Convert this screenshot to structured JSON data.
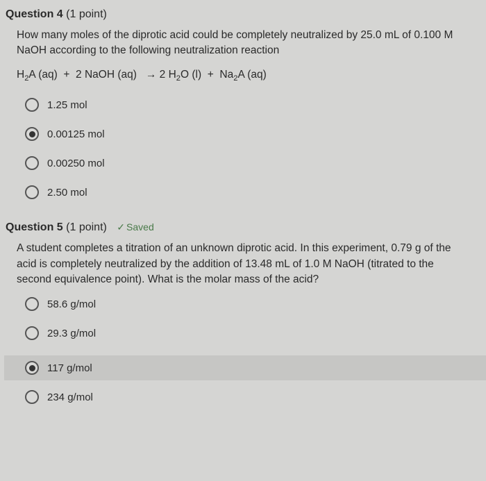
{
  "q4": {
    "title": "Question 4",
    "points": "(1 point)",
    "prompt": "How many moles of the diprotic acid could be completely neutralized by 25.0 mL of 0.100 M  NaOH according to the following neutralization reaction",
    "options": [
      {
        "label": "1.25 mol",
        "selected": false
      },
      {
        "label": "0.00125 mol",
        "selected": true
      },
      {
        "label": "0.00250 mol",
        "selected": false
      },
      {
        "label": "2.50 mol",
        "selected": false
      }
    ]
  },
  "q5": {
    "title": "Question 5",
    "points": "(1 point)",
    "saved": "Saved",
    "prompt": "A student completes a titration of an unknown diprotic acid. In this experiment, 0.79 g of the acid is completely neutralized by the addition of 13.48 mL of 1.0 M NaOH (titrated to  the second equivalence point). What is the molar mass of the acid?",
    "options": [
      {
        "label": "58.6 g/mol",
        "selected": false
      },
      {
        "label": "29.3 g/mol",
        "selected": false
      },
      {
        "label": "117 g/mol",
        "selected": true
      },
      {
        "label": "234 g/mol",
        "selected": false
      }
    ]
  }
}
